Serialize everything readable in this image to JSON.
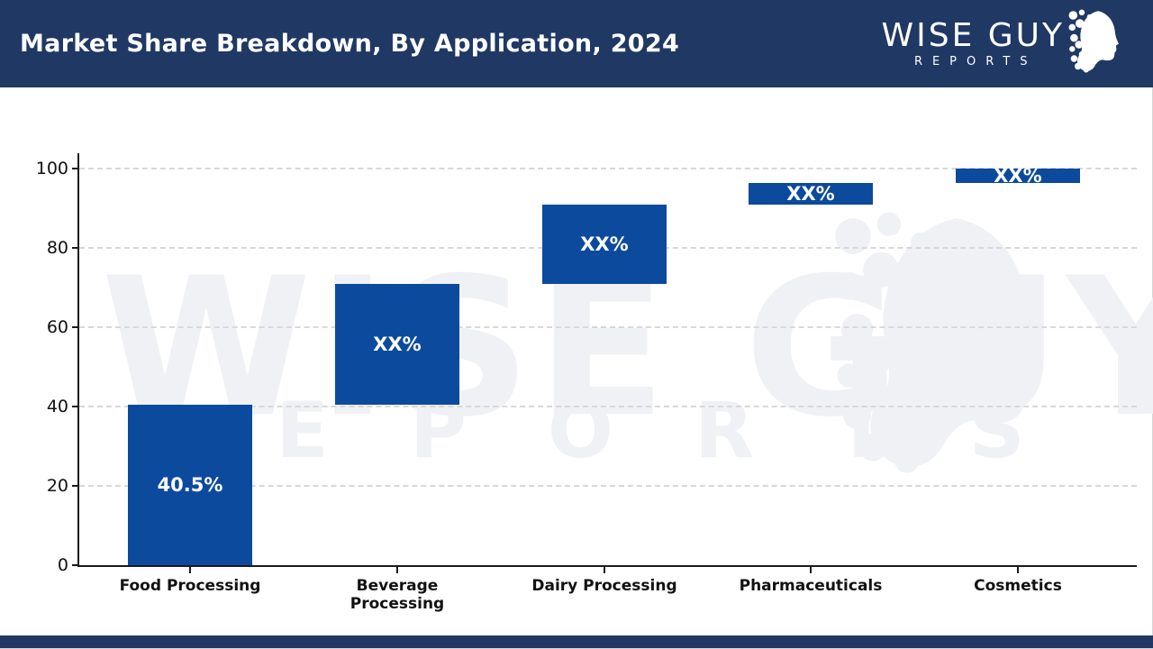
{
  "header": {
    "title": "Market Share Breakdown, By Application, 2024",
    "logo_line1": "WISE GUY",
    "logo_line2": "REPORTS"
  },
  "watermark": {
    "line1": "WISE GUY",
    "line2": "R E P O R T S"
  },
  "colors": {
    "header_bg": "#1f3864",
    "footer_bg": "#1f3864",
    "bar_color": "#0c4a9e",
    "grid_color": "#d8d8d8",
    "axis_color": "#1a1a1a",
    "watermark_color": "#f0f1f4"
  },
  "chart_data": {
    "type": "bar",
    "subtype": "waterfall",
    "title": "Market Share Breakdown, By Application, 2024",
    "xlabel": "",
    "ylabel": "",
    "categories": [
      "Food Processing",
      "Beverage\nProcessing",
      "Dairy Processing",
      "Pharmaceuticals",
      "Cosmetics"
    ],
    "segments": [
      {
        "category": "Food Processing",
        "start": 0,
        "end": 40.5,
        "label": "40.5%"
      },
      {
        "category": "Beverage Processing",
        "start": 40.5,
        "end": 71,
        "label": "XX%"
      },
      {
        "category": "Dairy Processing",
        "start": 71,
        "end": 91,
        "label": "XX%"
      },
      {
        "category": "Pharmaceuticals",
        "start": 91,
        "end": 96.3,
        "label": "XX%"
      },
      {
        "category": "Cosmetics",
        "start": 96.3,
        "end": 100,
        "label": "XX%"
      }
    ],
    "y_ticks": [
      0,
      20,
      40,
      60,
      80,
      100
    ],
    "ylim": [
      0,
      104
    ],
    "grid": "horizontal-dashed",
    "legend": "none"
  }
}
